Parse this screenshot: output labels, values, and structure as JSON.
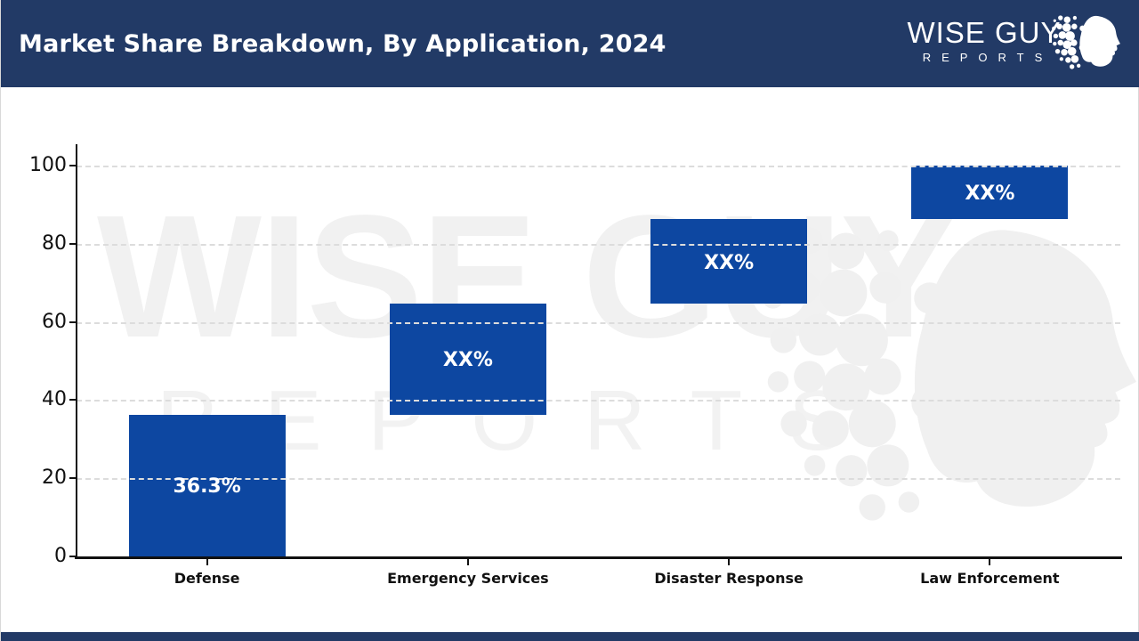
{
  "header": {
    "title": "Market Share Breakdown, By Application, 2024",
    "bg_color": "#223a66",
    "logo": {
      "line1": "WISE GUY",
      "line2": "REPORTS"
    }
  },
  "watermark": {
    "line1": "WISE GUY",
    "line2": "REPORTS"
  },
  "chart_data": {
    "type": "bar",
    "subtype": "waterfall-floating-bars",
    "title": "Market Share Breakdown, By Application, 2024",
    "categories": [
      "Defense",
      "Emergency Services",
      "Disaster Response",
      "Law Enforcement"
    ],
    "segments": [
      {
        "category": "Defense",
        "start": 0,
        "end": 36.3,
        "label": "36.3%"
      },
      {
        "category": "Emergency Services",
        "start": 36.3,
        "end": 64.7,
        "label": "XX%"
      },
      {
        "category": "Disaster Response",
        "start": 64.7,
        "end": 86.3,
        "label": "XX%"
      },
      {
        "category": "Law Enforcement",
        "start": 86.3,
        "end": 100,
        "label": "XX%"
      }
    ],
    "y_ticks": [
      0,
      20,
      40,
      60,
      80,
      100
    ],
    "ylim": [
      0,
      105
    ],
    "xlabel": "",
    "ylabel": "",
    "grid": "horizontal dashed, drawn over bars",
    "bar_color": "#0d47a1",
    "legend_position": "none"
  },
  "footer": {
    "bg_color": "#223a66"
  }
}
